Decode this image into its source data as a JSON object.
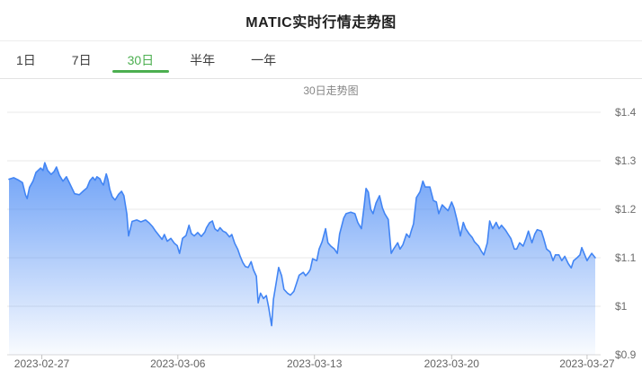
{
  "header": {
    "title": "MATIC实时行情走势图"
  },
  "tabs": {
    "items": [
      {
        "key": "1d",
        "label": "1日",
        "active": false
      },
      {
        "key": "7d",
        "label": "7日",
        "active": false
      },
      {
        "key": "30d",
        "label": "30日",
        "active": true
      },
      {
        "key": "6m",
        "label": "半年",
        "active": false
      },
      {
        "key": "1y",
        "label": "一年",
        "active": false
      }
    ]
  },
  "chart": {
    "subtitle": "30日走势图"
  },
  "colors": {
    "accent_green": "#4caf50",
    "line_blue": "#4285f4",
    "grid_line": "#e9e9e9",
    "axis_line": "#d8d8d8",
    "tick_mark": "#c4c4c4",
    "axis_label": "#6b6b6b"
  },
  "chart_data": {
    "type": "area",
    "title": "30日走势图",
    "legend": false,
    "grid": true,
    "unit": "USD",
    "y_axis": {
      "min": 0.9,
      "max": 1.4,
      "position": "right",
      "ticks": [
        {
          "label": "$1.4",
          "value": 1.4
        },
        {
          "label": "$1.3",
          "value": 1.3
        },
        {
          "label": "$1.2",
          "value": 1.2
        },
        {
          "label": "$1.1",
          "value": 1.1
        },
        {
          "label": "$1",
          "value": 1.0
        },
        {
          "label": "$0.9",
          "value": 0.9
        }
      ]
    },
    "x_axis": {
      "ticks": [
        {
          "label": "2023-02-27",
          "f": 0.056
        },
        {
          "label": "2023-03-06",
          "f": 0.288
        },
        {
          "label": "2023-03-13",
          "f": 0.521
        },
        {
          "label": "2023-03-20",
          "f": 0.755
        },
        {
          "label": "2023-03-27",
          "f": 0.986
        }
      ]
    },
    "series": [
      {
        "name": "MATIC",
        "points": [
          [
            0.0,
            1.262
          ],
          [
            0.008,
            1.265
          ],
          [
            0.015,
            1.261
          ],
          [
            0.023,
            1.255
          ],
          [
            0.028,
            1.23
          ],
          [
            0.031,
            1.222
          ],
          [
            0.035,
            1.245
          ],
          [
            0.041,
            1.258
          ],
          [
            0.046,
            1.276
          ],
          [
            0.054,
            1.285
          ],
          [
            0.058,
            1.28
          ],
          [
            0.061,
            1.296
          ],
          [
            0.066,
            1.28
          ],
          [
            0.072,
            1.272
          ],
          [
            0.077,
            1.278
          ],
          [
            0.081,
            1.287
          ],
          [
            0.086,
            1.27
          ],
          [
            0.092,
            1.258
          ],
          [
            0.098,
            1.267
          ],
          [
            0.104,
            1.252
          ],
          [
            0.112,
            1.232
          ],
          [
            0.12,
            1.23
          ],
          [
            0.127,
            1.238
          ],
          [
            0.133,
            1.244
          ],
          [
            0.138,
            1.259
          ],
          [
            0.143,
            1.266
          ],
          [
            0.147,
            1.26
          ],
          [
            0.15,
            1.267
          ],
          [
            0.155,
            1.263
          ],
          [
            0.158,
            1.255
          ],
          [
            0.161,
            1.25
          ],
          [
            0.166,
            1.273
          ],
          [
            0.169,
            1.26
          ],
          [
            0.172,
            1.241
          ],
          [
            0.176,
            1.226
          ],
          [
            0.181,
            1.219
          ],
          [
            0.187,
            1.231
          ],
          [
            0.192,
            1.237
          ],
          [
            0.196,
            1.228
          ],
          [
            0.201,
            1.19
          ],
          [
            0.204,
            1.145
          ],
          [
            0.207,
            1.16
          ],
          [
            0.21,
            1.175
          ],
          [
            0.218,
            1.178
          ],
          [
            0.225,
            1.174
          ],
          [
            0.233,
            1.178
          ],
          [
            0.239,
            1.172
          ],
          [
            0.245,
            1.164
          ],
          [
            0.25,
            1.155
          ],
          [
            0.256,
            1.146
          ],
          [
            0.261,
            1.138
          ],
          [
            0.265,
            1.148
          ],
          [
            0.27,
            1.134
          ],
          [
            0.276,
            1.14
          ],
          [
            0.282,
            1.13
          ],
          [
            0.287,
            1.125
          ],
          [
            0.291,
            1.109
          ],
          [
            0.296,
            1.14
          ],
          [
            0.302,
            1.146
          ],
          [
            0.307,
            1.167
          ],
          [
            0.311,
            1.15
          ],
          [
            0.316,
            1.145
          ],
          [
            0.322,
            1.152
          ],
          [
            0.328,
            1.144
          ],
          [
            0.334,
            1.153
          ],
          [
            0.337,
            1.162
          ],
          [
            0.342,
            1.172
          ],
          [
            0.347,
            1.176
          ],
          [
            0.351,
            1.16
          ],
          [
            0.356,
            1.155
          ],
          [
            0.36,
            1.162
          ],
          [
            0.365,
            1.155
          ],
          [
            0.37,
            1.152
          ],
          [
            0.376,
            1.143
          ],
          [
            0.38,
            1.148
          ],
          [
            0.385,
            1.13
          ],
          [
            0.39,
            1.118
          ],
          [
            0.394,
            1.104
          ],
          [
            0.399,
            1.09
          ],
          [
            0.403,
            1.082
          ],
          [
            0.408,
            1.08
          ],
          [
            0.413,
            1.092
          ],
          [
            0.417,
            1.075
          ],
          [
            0.422,
            1.062
          ],
          [
            0.425,
            1.007
          ],
          [
            0.429,
            1.027
          ],
          [
            0.434,
            1.016
          ],
          [
            0.439,
            1.022
          ],
          [
            0.443,
            0.998
          ],
          [
            0.448,
            0.96
          ],
          [
            0.451,
            1.014
          ],
          [
            0.456,
            1.05
          ],
          [
            0.46,
            1.08
          ],
          [
            0.465,
            1.063
          ],
          [
            0.469,
            1.035
          ],
          [
            0.475,
            1.027
          ],
          [
            0.48,
            1.023
          ],
          [
            0.486,
            1.031
          ],
          [
            0.491,
            1.049
          ],
          [
            0.495,
            1.064
          ],
          [
            0.502,
            1.07
          ],
          [
            0.506,
            1.063
          ],
          [
            0.511,
            1.07
          ],
          [
            0.514,
            1.076
          ],
          [
            0.518,
            1.098
          ],
          [
            0.525,
            1.094
          ],
          [
            0.529,
            1.118
          ],
          [
            0.534,
            1.133
          ],
          [
            0.54,
            1.16
          ],
          [
            0.544,
            1.131
          ],
          [
            0.549,
            1.124
          ],
          [
            0.555,
            1.118
          ],
          [
            0.56,
            1.109
          ],
          [
            0.564,
            1.149
          ],
          [
            0.571,
            1.182
          ],
          [
            0.575,
            1.191
          ],
          [
            0.583,
            1.194
          ],
          [
            0.59,
            1.191
          ],
          [
            0.595,
            1.173
          ],
          [
            0.601,
            1.16
          ],
          [
            0.606,
            1.209
          ],
          [
            0.609,
            1.243
          ],
          [
            0.613,
            1.235
          ],
          [
            0.617,
            1.2
          ],
          [
            0.621,
            1.191
          ],
          [
            0.626,
            1.213
          ],
          [
            0.632,
            1.228
          ],
          [
            0.637,
            1.203
          ],
          [
            0.641,
            1.191
          ],
          [
            0.647,
            1.179
          ],
          [
            0.652,
            1.109
          ],
          [
            0.656,
            1.118
          ],
          [
            0.663,
            1.131
          ],
          [
            0.667,
            1.118
          ],
          [
            0.672,
            1.127
          ],
          [
            0.678,
            1.149
          ],
          [
            0.683,
            1.142
          ],
          [
            0.686,
            1.155
          ],
          [
            0.69,
            1.17
          ],
          [
            0.695,
            1.224
          ],
          [
            0.701,
            1.236
          ],
          [
            0.706,
            1.258
          ],
          [
            0.71,
            1.246
          ],
          [
            0.718,
            1.246
          ],
          [
            0.724,
            1.218
          ],
          [
            0.729,
            1.215
          ],
          [
            0.733,
            1.191
          ],
          [
            0.739,
            1.209
          ],
          [
            0.744,
            1.203
          ],
          [
            0.749,
            1.197
          ],
          [
            0.755,
            1.215
          ],
          [
            0.759,
            1.203
          ],
          [
            0.764,
            1.179
          ],
          [
            0.77,
            1.145
          ],
          [
            0.775,
            1.173
          ],
          [
            0.779,
            1.16
          ],
          [
            0.785,
            1.149
          ],
          [
            0.79,
            1.142
          ],
          [
            0.794,
            1.133
          ],
          [
            0.801,
            1.124
          ],
          [
            0.805,
            1.115
          ],
          [
            0.81,
            1.106
          ],
          [
            0.816,
            1.131
          ],
          [
            0.82,
            1.176
          ],
          [
            0.825,
            1.16
          ],
          [
            0.831,
            1.173
          ],
          [
            0.836,
            1.16
          ],
          [
            0.84,
            1.167
          ],
          [
            0.847,
            1.157
          ],
          [
            0.851,
            1.149
          ],
          [
            0.856,
            1.14
          ],
          [
            0.862,
            1.118
          ],
          [
            0.866,
            1.118
          ],
          [
            0.871,
            1.131
          ],
          [
            0.877,
            1.124
          ],
          [
            0.882,
            1.14
          ],
          [
            0.886,
            1.155
          ],
          [
            0.892,
            1.131
          ],
          [
            0.897,
            1.149
          ],
          [
            0.901,
            1.158
          ],
          [
            0.908,
            1.155
          ],
          [
            0.912,
            1.14
          ],
          [
            0.917,
            1.118
          ],
          [
            0.923,
            1.112
          ],
          [
            0.928,
            1.094
          ],
          [
            0.932,
            1.106
          ],
          [
            0.938,
            1.106
          ],
          [
            0.943,
            1.094
          ],
          [
            0.948,
            1.103
          ],
          [
            0.954,
            1.088
          ],
          [
            0.959,
            1.079
          ],
          [
            0.963,
            1.094
          ],
          [
            0.969,
            1.1
          ],
          [
            0.974,
            1.106
          ],
          [
            0.977,
            1.121
          ],
          [
            0.982,
            1.106
          ],
          [
            0.986,
            1.094
          ],
          [
            0.989,
            1.1
          ],
          [
            0.994,
            1.109
          ],
          [
            1.0,
            1.1
          ]
        ]
      }
    ]
  }
}
